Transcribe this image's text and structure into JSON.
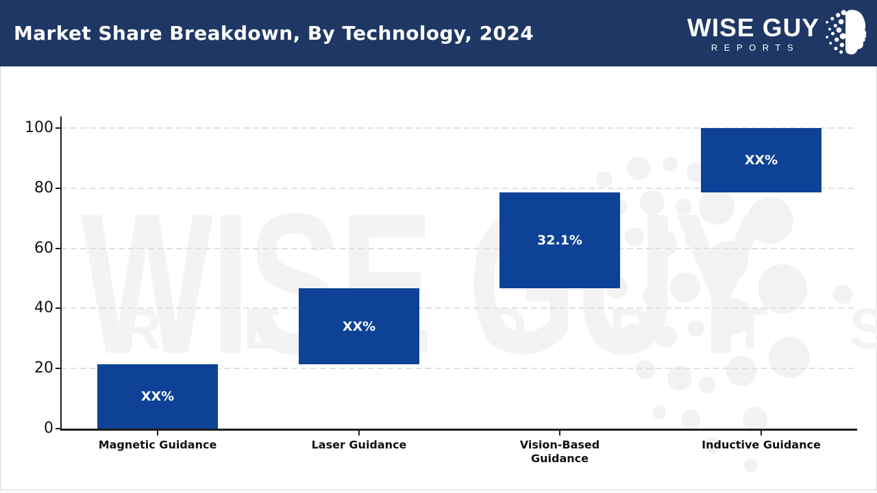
{
  "header": {
    "title": "Market Share Breakdown, By Technology, 2024",
    "bg_color": "#1e3765",
    "logo": {
      "line1": "WISE GUY",
      "line2": "REPORTS",
      "face_icon": "dotted-face-profile"
    }
  },
  "watermark": {
    "line1": "WISE GUY",
    "line2": "R E P O R T S",
    "color": "#f3f3f3"
  },
  "chart_data": {
    "type": "bar",
    "variant": "waterfall",
    "title": "Market Share Breakdown, By Technology, 2024",
    "categories": [
      "Magnetic Guidance",
      "Laser Guidance",
      "Vision-Based Guidance",
      "Inductive Guidance"
    ],
    "segments": [
      {
        "category": "Magnetic Guidance",
        "label_lines": [
          "Magnetic Guidance"
        ],
        "start": 0,
        "end": 21.3,
        "value_label": "XX%"
      },
      {
        "category": "Laser Guidance",
        "label_lines": [
          "Laser Guidance"
        ],
        "start": 21.3,
        "end": 46.6,
        "value_label": "XX%"
      },
      {
        "category": "Vision-Based Guidance",
        "label_lines": [
          "Vision-Based",
          "Guidance"
        ],
        "start": 46.6,
        "end": 78.7,
        "value_label": "32.1%"
      },
      {
        "category": "Inductive Guidance",
        "label_lines": [
          "Inductive Guidance"
        ],
        "start": 78.7,
        "end": 100,
        "value_label": "XX%"
      }
    ],
    "ylim": [
      0,
      100
    ],
    "yticks": [
      0,
      20,
      40,
      60,
      80,
      100
    ],
    "grid": "horizontal-dashed",
    "legend": "none",
    "xlabel": "",
    "ylabel": "",
    "bar_color": "#0d4296",
    "value_label_color": "#ffffff"
  }
}
